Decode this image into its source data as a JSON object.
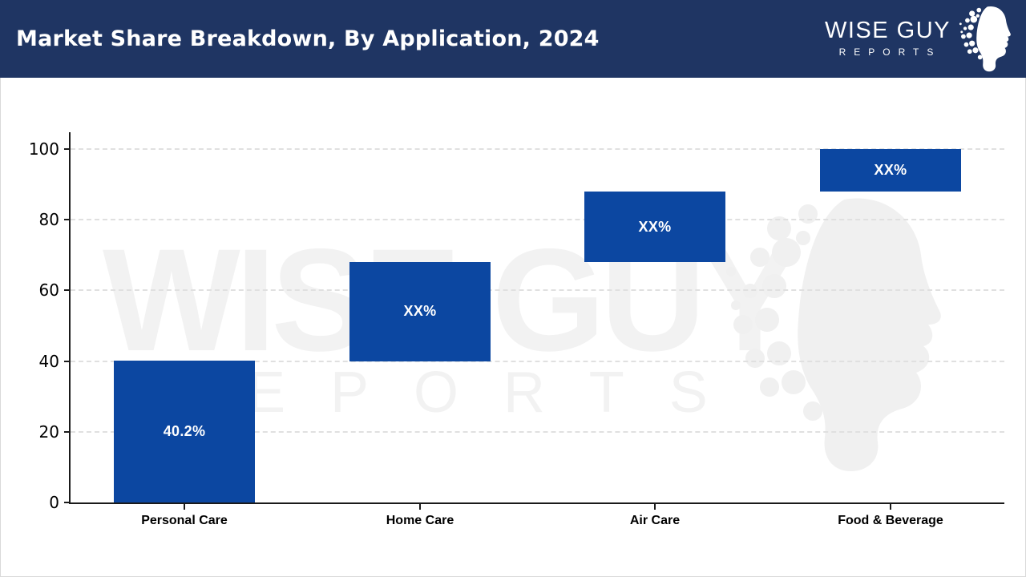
{
  "header": {
    "title": "Market Share Breakdown, By Application, 2024",
    "logo": {
      "line1": "WISE GUY",
      "line2": "REPORTS"
    }
  },
  "watermark": {
    "line1": "WISE GUY",
    "line2": "REPORTS"
  },
  "chart_data": {
    "type": "bar",
    "subtype": "waterfall-floating-bars",
    "title": "Market Share Breakdown, By Application, 2024",
    "categories": [
      "Personal Care",
      "Home Care",
      "Air Care",
      "Food & Beverage"
    ],
    "segments": [
      {
        "category": "Personal Care",
        "start": 0,
        "end": 40.2,
        "label": "40.2%"
      },
      {
        "category": "Home Care",
        "start": 40,
        "end": 68,
        "label": "XX%"
      },
      {
        "category": "Air Care",
        "start": 68,
        "end": 88,
        "label": "XX%"
      },
      {
        "category": "Food & Beverage",
        "start": 88,
        "end": 100,
        "label": "XX%"
      }
    ],
    "xlabel": "",
    "ylabel": "",
    "ylim": [
      0,
      100
    ],
    "yticks": [
      0,
      20,
      40,
      60,
      80,
      100
    ],
    "grid": "horizontal-dashed",
    "legend": false,
    "bar_color": "#0c47a1",
    "value_label_color": "#ffffff"
  },
  "colors": {
    "header_bg": "#1f3563",
    "bar": "#0c47a1",
    "grid": "#e0e0e0",
    "axis": "#1a1a1a",
    "watermark": "#f2f2f2"
  }
}
